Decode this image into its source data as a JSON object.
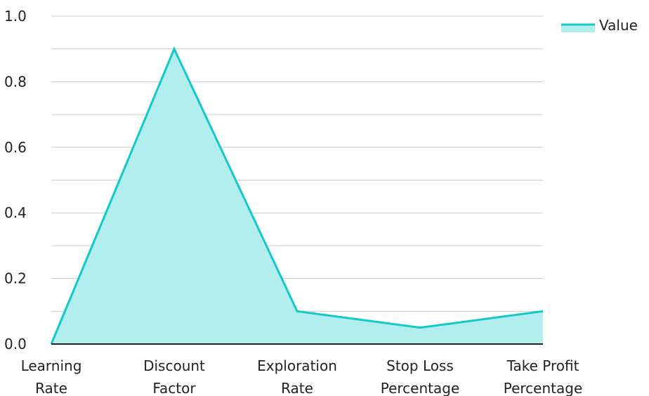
{
  "chart_data": {
    "type": "area",
    "categories": [
      [
        "Learning",
        "Rate"
      ],
      [
        "Discount",
        "Factor"
      ],
      [
        "Exploration",
        "Rate"
      ],
      [
        "Stop Loss",
        "Percentage"
      ],
      [
        "Take Profit",
        "Percentage"
      ]
    ],
    "series": [
      {
        "name": "Value",
        "values": [
          0.0,
          0.9,
          0.1,
          0.05,
          0.1
        ]
      }
    ],
    "ylim": [
      0,
      1
    ],
    "yticks": [
      "0.0",
      "0.2",
      "0.4",
      "0.6",
      "0.8",
      "1.0"
    ],
    "grid": true,
    "legend_position": "top-right",
    "colors": {
      "line": "#12c9c9",
      "fill": "#b3eeee",
      "grid": "#cccccc",
      "axis": "#222222"
    }
  }
}
